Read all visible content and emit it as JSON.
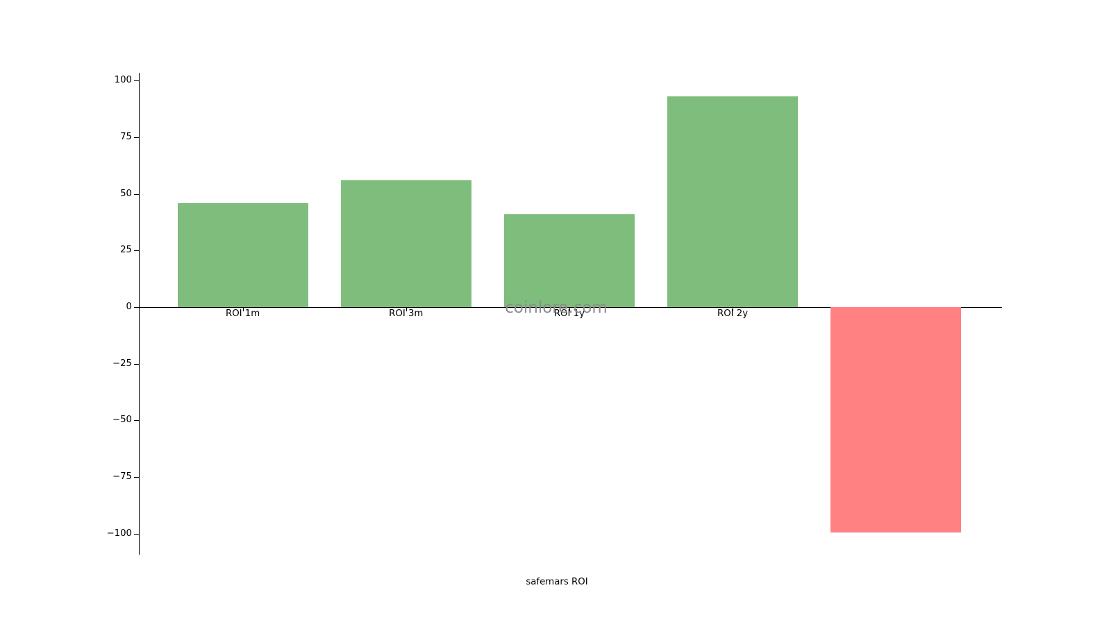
{
  "watermark": "coinlore.com",
  "chart_data": {
    "type": "bar",
    "title": "",
    "xlabel": "safemars ROI",
    "ylabel": "",
    "categories": [
      "ROI 1m",
      "ROI 3m",
      "ROI 1y",
      "ROI 2y",
      ""
    ],
    "values": [
      46,
      56,
      41,
      93,
      -99.5
    ],
    "yticks": [
      100,
      75,
      50,
      25,
      0,
      -25,
      -50,
      -75,
      -100
    ],
    "ylim": [
      -109.2,
      103.4
    ],
    "grid": false,
    "legend": "none",
    "colors": {
      "positive": "#7ebd7b",
      "negative": "#ff8181",
      "axis": "#000000",
      "text": "#000000",
      "watermark": "#8c8c8c"
    }
  }
}
